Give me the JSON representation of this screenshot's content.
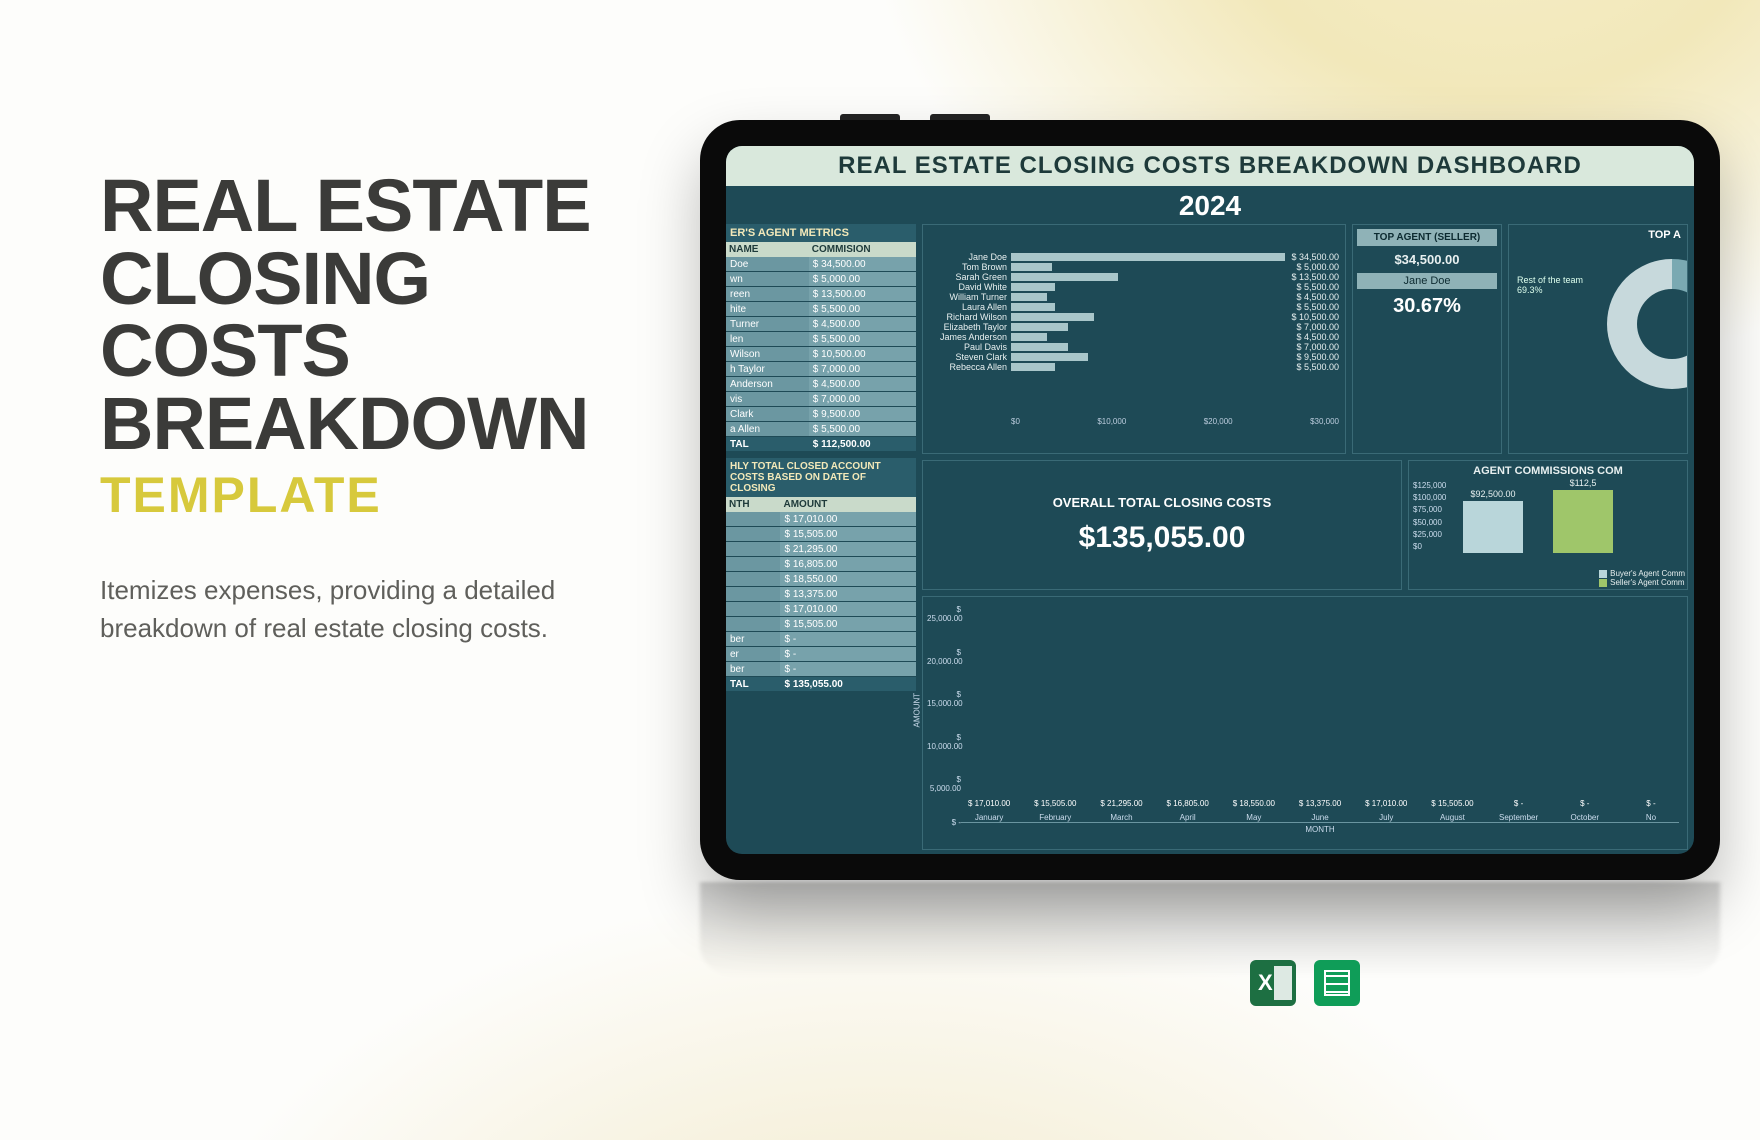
{
  "hero": {
    "title_line1": "REAL ESTATE",
    "title_line2": "CLOSING",
    "title_line3": "COSTS",
    "title_line4": "BREAKDOWN",
    "template_word": "TEMPLATE",
    "subtitle": "Itemizes expenses, providing a detailed breakdown of real estate closing costs."
  },
  "dashboard": {
    "title": "REAL ESTATE CLOSING COSTS BREAKDOWN DASHBOARD",
    "year": "2024",
    "accent_bg": "#1e4a56",
    "header_bg": "#d9e8dc",
    "agent_metrics": {
      "section_title": "ER'S AGENT METRICS",
      "col_name": "NAME",
      "col_comm": "COMMISION",
      "rows": [
        {
          "name": "Doe",
          "comm": "$   34,500.00"
        },
        {
          "name": "wn",
          "comm": "$    5,000.00"
        },
        {
          "name": "reen",
          "comm": "$   13,500.00"
        },
        {
          "name": "hite",
          "comm": "$    5,500.00"
        },
        {
          "name": "Turner",
          "comm": "$    4,500.00"
        },
        {
          "name": "len",
          "comm": "$    5,500.00"
        },
        {
          "name": "Wilson",
          "comm": "$   10,500.00"
        },
        {
          "name": "h Taylor",
          "comm": "$    7,000.00"
        },
        {
          "name": "Anderson",
          "comm": "$    4,500.00"
        },
        {
          "name": "vis",
          "comm": "$    7,000.00"
        },
        {
          "name": "Clark",
          "comm": "$    9,500.00"
        },
        {
          "name": "a Allen",
          "comm": "$    5,500.00"
        }
      ],
      "total_label": "TAL",
      "total_value": "$  112,500.00"
    },
    "hbar": {
      "max": 34500,
      "bar_color": "#a9c6ca",
      "rows": [
        {
          "name": "Jane Doe",
          "val": 34500,
          "label": "$ 34,500.00"
        },
        {
          "name": "Tom Brown",
          "val": 5000,
          "label": "$ 5,000.00"
        },
        {
          "name": "Sarah Green",
          "val": 13500,
          "label": "$ 13,500.00"
        },
        {
          "name": "David White",
          "val": 5500,
          "label": "$ 5,500.00"
        },
        {
          "name": "William Turner",
          "val": 4500,
          "label": "$ 4,500.00"
        },
        {
          "name": "Laura Allen",
          "val": 5500,
          "label": "$ 5,500.00"
        },
        {
          "name": "Richard Wilson",
          "val": 10500,
          "label": "$ 10,500.00"
        },
        {
          "name": "Elizabeth Taylor",
          "val": 7000,
          "label": "$ 7,000.00"
        },
        {
          "name": "James Anderson",
          "val": 4500,
          "label": "$ 4,500.00"
        },
        {
          "name": "Paul Davis",
          "val": 7000,
          "label": "$ 7,000.00"
        },
        {
          "name": "Steven Clark",
          "val": 9500,
          "label": "$ 9,500.00"
        },
        {
          "name": "Rebecca Allen",
          "val": 5500,
          "label": "$ 5,500.00"
        }
      ],
      "xaxis": [
        "$0",
        "$10,000",
        "$20,000",
        "$30,000"
      ]
    },
    "top_agent": {
      "title": "TOP AGENT (SELLER)",
      "amount": "$34,500.00",
      "name": "Jane Doe",
      "pct": "30.67%"
    },
    "donut": {
      "title": "TOP A",
      "rest_label": "Rest of the team",
      "rest_pct": "69.3%",
      "slice_pct": 30.7,
      "color_a": "#7aa9b2",
      "color_b": "#c7d9dc"
    },
    "overall": {
      "title": "OVERALL TOTAL CLOSING COSTS",
      "value": "$135,055.00"
    },
    "comm_compare": {
      "title": "AGENT COMMISSIONS COM",
      "ymax": 125000,
      "yticks": [
        "$125,000",
        "$100,000",
        "$75,000",
        "$50,000",
        "$25,000",
        "$0"
      ],
      "bars": [
        {
          "label": "$92,500.00",
          "val": 92500,
          "color": "#b9d6da"
        },
        {
          "label": "$112,5",
          "val": 112500,
          "color": "#9fc66a"
        }
      ],
      "legend": [
        {
          "color": "#b9d6da",
          "text": "Buyer's Agent Comm"
        },
        {
          "color": "#9fc66a",
          "text": "Seller's Agent Comm"
        }
      ]
    },
    "monthly": {
      "section_title": "HLY TOTAL CLOSED ACCOUNT COSTS BASED ON DATE OF CLOSING",
      "col_month": "NTH",
      "col_amount": "AMOUNT",
      "ylabel": "AMOUNT",
      "xlabel": "MONTH",
      "ymax": 25000,
      "yticks": [
        "$ 25,000.00",
        "$ 20,000.00",
        "$ 15,000.00",
        "$ 10,000.00",
        "$ 5,000.00",
        "$ -"
      ],
      "rows": [
        {
          "month": "January",
          "val": 17010,
          "label": "$ 17,010.00",
          "amt": "$   17,010.00"
        },
        {
          "month": "February",
          "val": 15505,
          "label": "$ 15,505.00",
          "amt": "$   15,505.00"
        },
        {
          "month": "March",
          "val": 21295,
          "label": "$ 21,295.00",
          "amt": "$   21,295.00"
        },
        {
          "month": "April",
          "val": 16805,
          "label": "$ 16,805.00",
          "amt": "$   16,805.00"
        },
        {
          "month": "May",
          "val": 18550,
          "label": "$ 18,550.00",
          "amt": "$   18,550.00"
        },
        {
          "month": "June",
          "val": 13375,
          "label": "$ 13,375.00",
          "amt": "$   13,375.00"
        },
        {
          "month": "July",
          "val": 17010,
          "label": "$ 17,010.00",
          "amt": "$   17,010.00"
        },
        {
          "month": "August",
          "val": 15505,
          "label": "$ 15,505.00",
          "amt": "$   15,505.00"
        },
        {
          "month": "September",
          "val": 0,
          "label": "$ -",
          "amt": "$         -"
        },
        {
          "month": "October",
          "val": 0,
          "label": "$ -",
          "amt": "$         -"
        },
        {
          "month": "No",
          "val": 0,
          "label": "$ -",
          "amt": "$         -"
        }
      ],
      "table_extra": [
        {
          "month": "ber",
          "amt": "$         -"
        },
        {
          "month": "er",
          "amt": "$         -"
        },
        {
          "month": "ber",
          "amt": "$         -"
        }
      ],
      "total_label": "TAL",
      "total_value": "$  135,055.00"
    }
  },
  "app_icons": {
    "excel": "excel-icon",
    "sheets": "google-sheets-icon"
  }
}
